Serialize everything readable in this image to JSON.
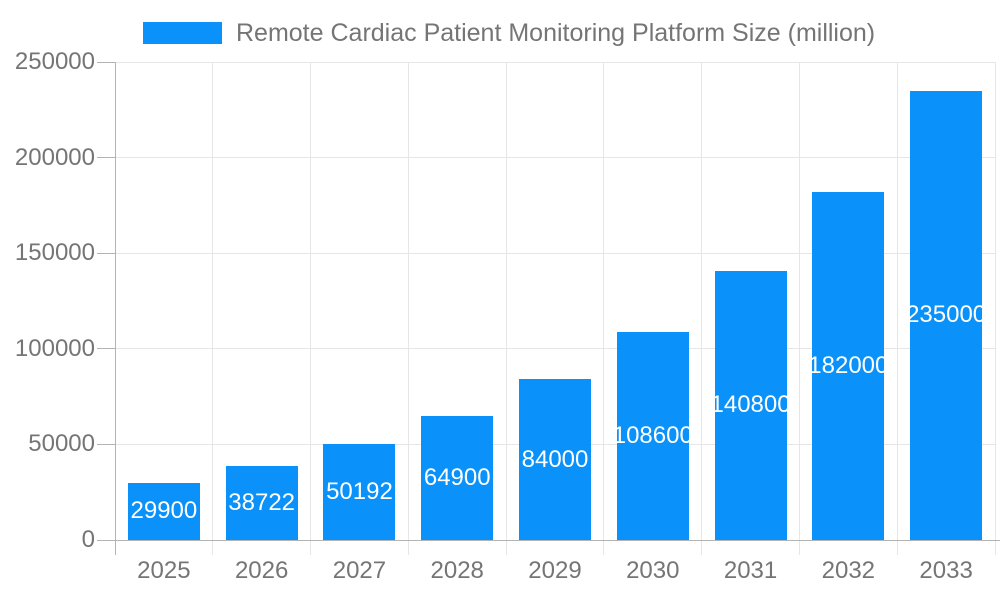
{
  "legend": {
    "swatch_icon": "legend-color-swatch"
  },
  "chart_data": {
    "type": "bar",
    "title": "Remote Cardiac Patient Monitoring Platform Size (million)",
    "categories": [
      "2025",
      "2026",
      "2027",
      "2028",
      "2029",
      "2030",
      "2031",
      "2032",
      "2033"
    ],
    "values": [
      29900,
      38722,
      50192,
      64900,
      84000,
      108600,
      140800,
      182000,
      235000
    ],
    "xlabel": "",
    "ylabel": "",
    "ylim": [
      0,
      250000
    ],
    "yticks": [
      0,
      50000,
      100000,
      150000,
      200000,
      250000
    ],
    "grid": "on",
    "legend_position": "top-left",
    "bar_labels_inside": "centered white",
    "bar_color": "#0a91fa",
    "value_label_color": "#ffffff",
    "axis_color": "#b3b3b3",
    "grid_color": "#e6e6e6",
    "text_color": "#757575"
  }
}
